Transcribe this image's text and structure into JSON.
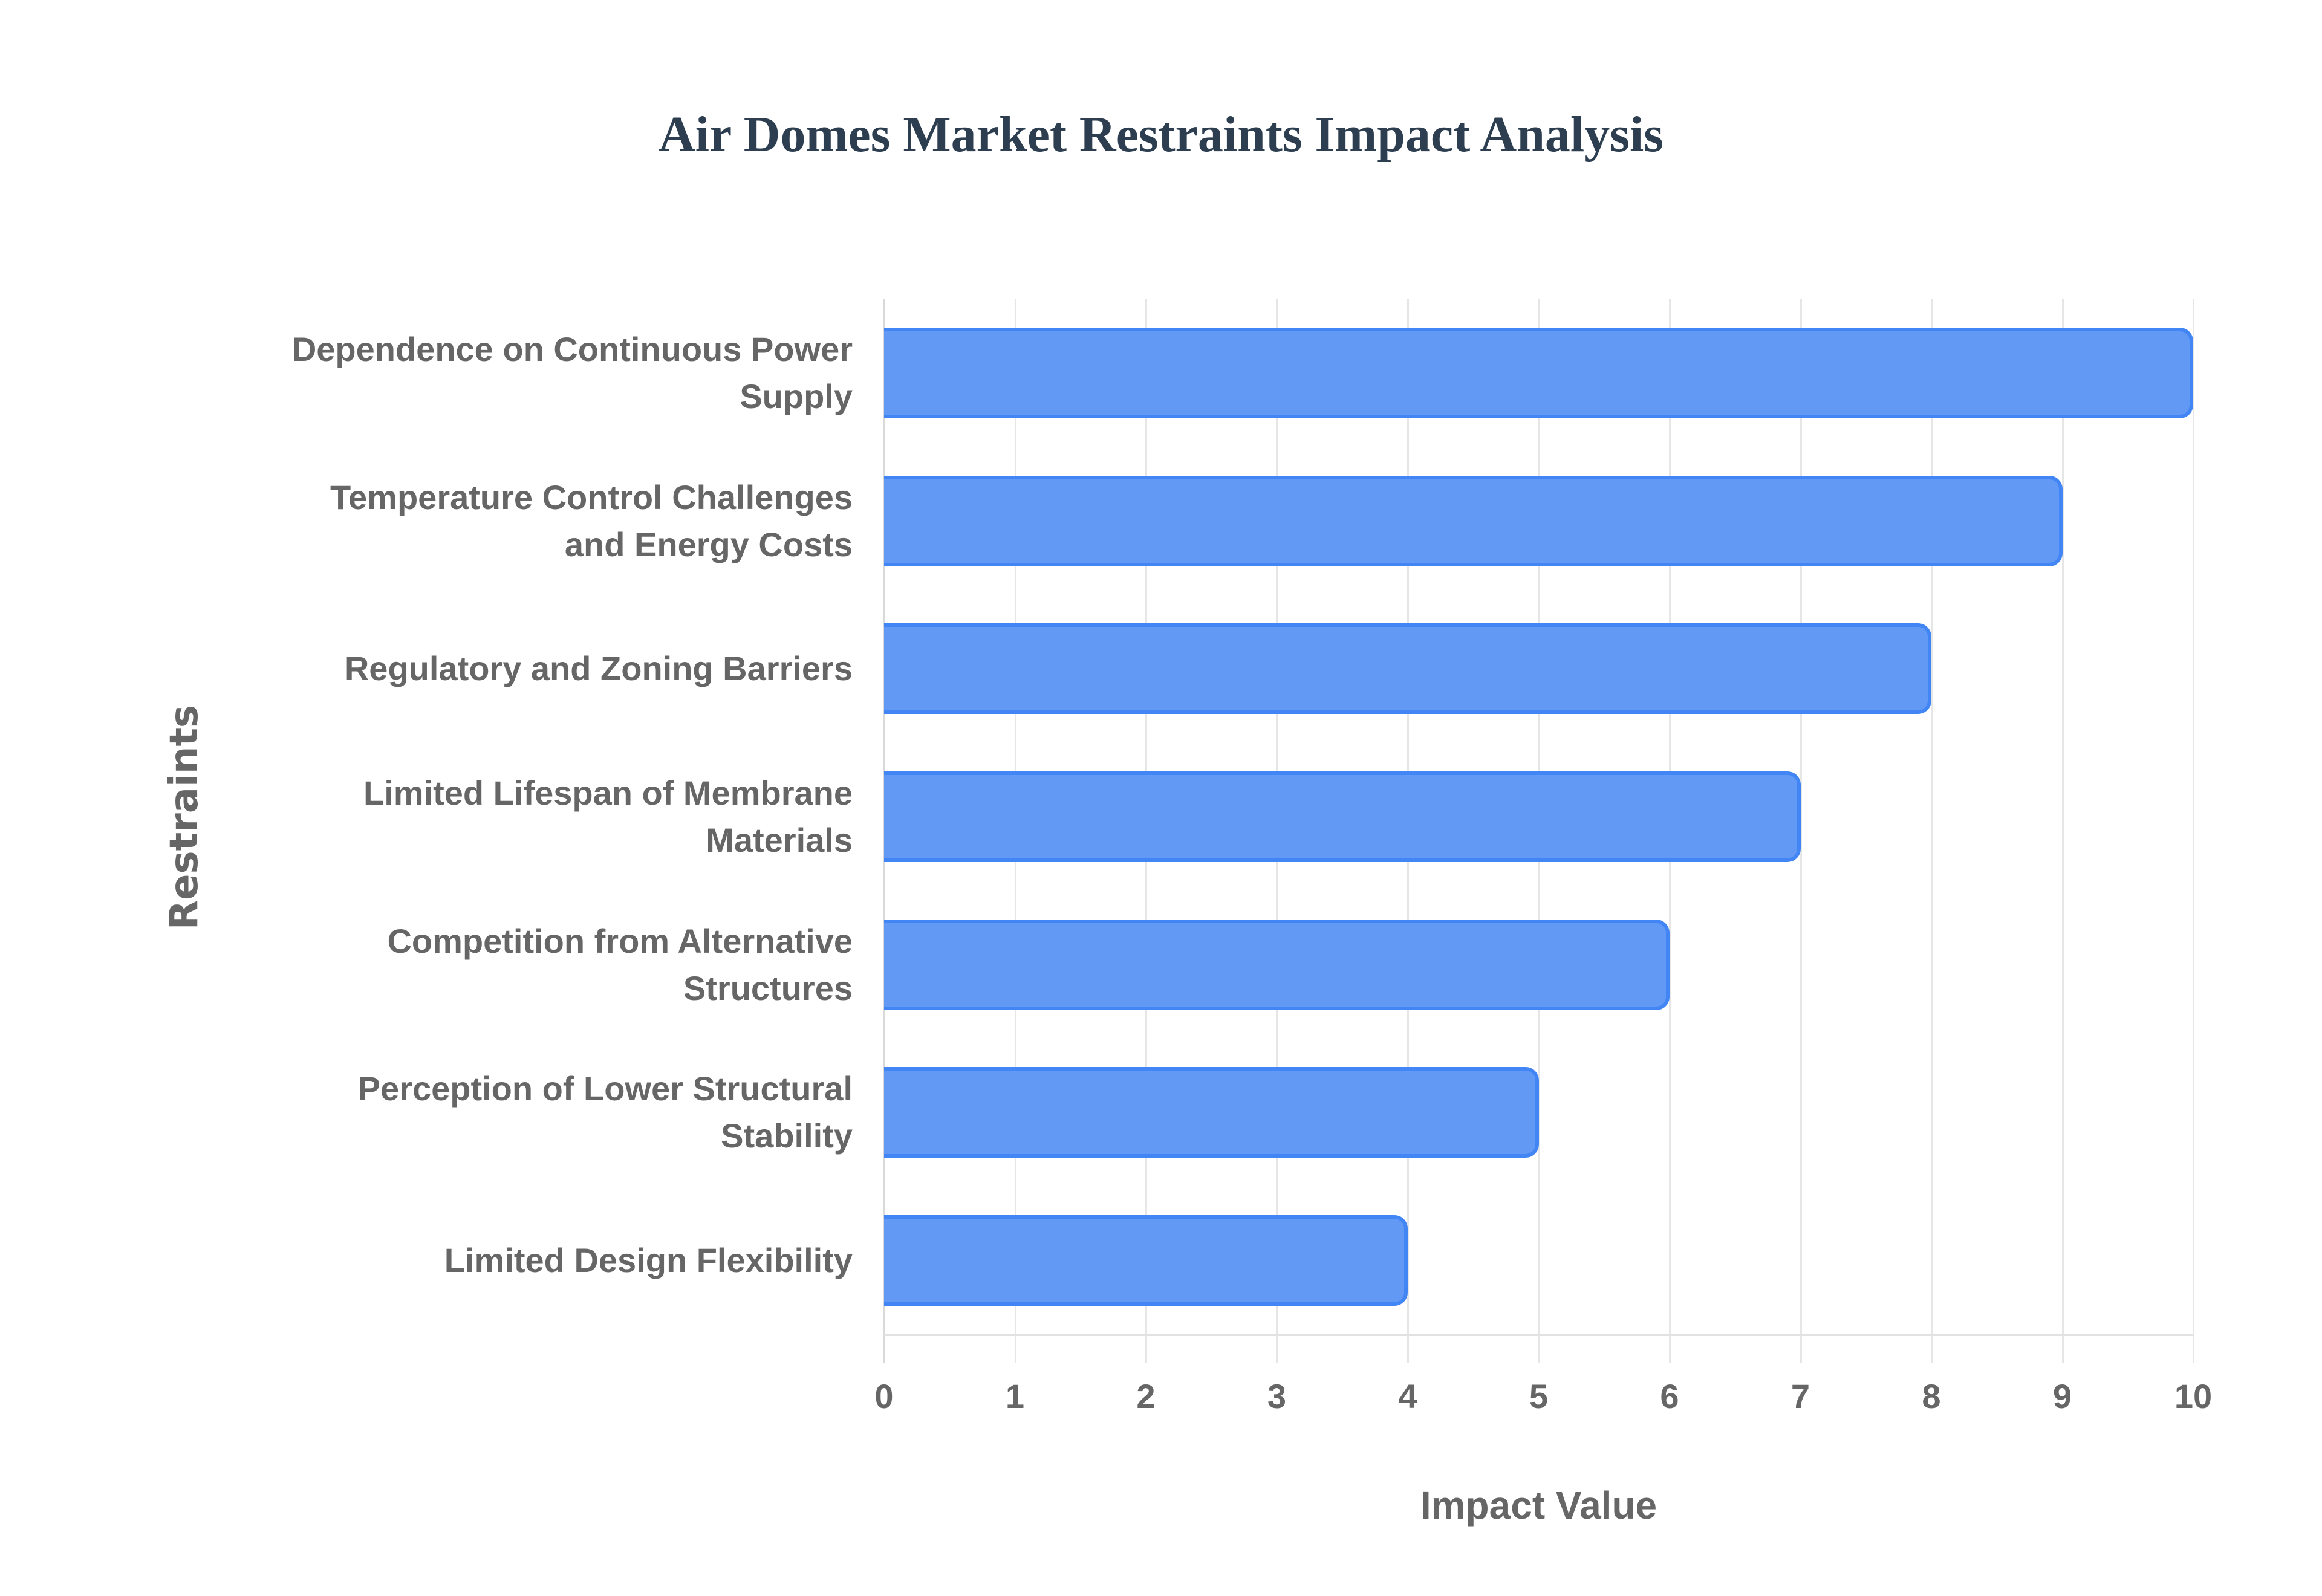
{
  "chart": {
    "title": "Air Domes Market Restraints Impact Analysis",
    "x_axis_title": "Impact Value",
    "y_axis_title": "Restraints",
    "x_ticks": [
      "0",
      "1",
      "2",
      "3",
      "4",
      "5",
      "6",
      "7",
      "8",
      "9",
      "10"
    ],
    "bar_fill": "#6199f5",
    "bar_border": "#4285f4",
    "categories": [
      {
        "label": "Dependence on Continuous Power\nSupply",
        "value": 10
      },
      {
        "label": "Temperature Control Challenges\nand Energy Costs",
        "value": 9
      },
      {
        "label": "Regulatory and Zoning Barriers",
        "value": 8
      },
      {
        "label": "Limited Lifespan of Membrane\nMaterials",
        "value": 7
      },
      {
        "label": "Competition from Alternative\nStructures",
        "value": 6
      },
      {
        "label": "Perception of Lower Structural\nStability",
        "value": 5
      },
      {
        "label": "Limited Design Flexibility",
        "value": 4
      }
    ]
  },
  "chart_data": {
    "type": "bar",
    "orientation": "horizontal",
    "title": "Air Domes Market Restraints Impact Analysis",
    "xlabel": "Impact Value",
    "ylabel": "Restraints",
    "categories": [
      "Dependence on Continuous Power Supply",
      "Temperature Control Challenges and Energy Costs",
      "Regulatory and Zoning Barriers",
      "Limited Lifespan of Membrane Materials",
      "Competition from Alternative Structures",
      "Perception of Lower Structural Stability",
      "Limited Design Flexibility"
    ],
    "values": [
      10,
      9,
      8,
      7,
      6,
      5,
      4
    ],
    "xlim": [
      0,
      10
    ],
    "x_ticks": [
      0,
      1,
      2,
      3,
      4,
      5,
      6,
      7,
      8,
      9,
      10
    ],
    "grid": {
      "vertical": true,
      "horizontal": false
    },
    "legend": null,
    "colors": {
      "bar_fill": "#6199f5",
      "bar_border": "#4285f4"
    }
  }
}
